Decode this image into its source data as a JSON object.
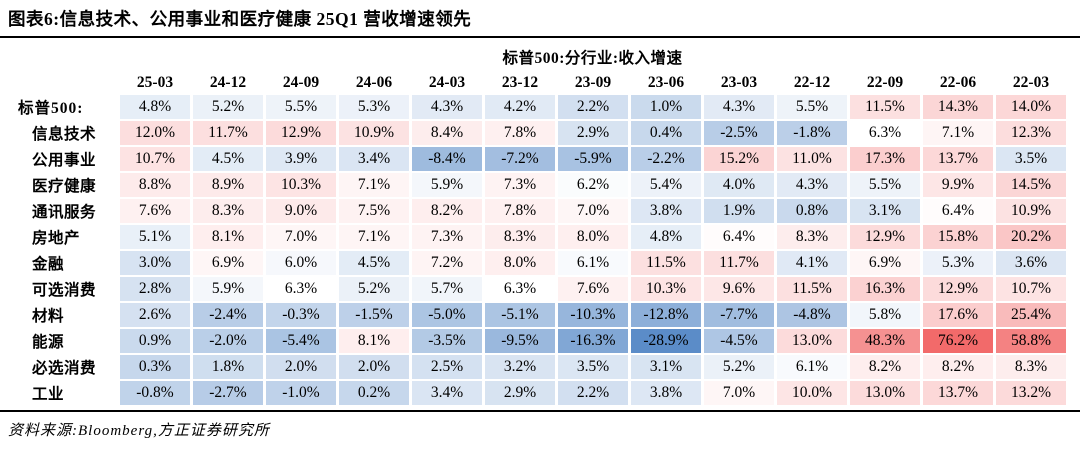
{
  "figure": {
    "title": "图表6:信息技术、公用事业和医疗健康 25Q1 营收增速领先",
    "source": "资料来源:Bloomberg,方正证券研究所"
  },
  "chart_data": {
    "type": "heatmap",
    "title": "标普500:分行业:收入增速",
    "unit": "%",
    "value_format": "one_decimal_percent",
    "categories": [
      "25-03",
      "24-12",
      "24-09",
      "24-06",
      "24-03",
      "23-12",
      "23-09",
      "23-06",
      "23-03",
      "22-12",
      "22-09",
      "22-06",
      "22-03"
    ],
    "rows": [
      {
        "name": "标普500:",
        "indent": false,
        "values": [
          4.8,
          5.2,
          5.5,
          5.3,
          4.3,
          4.2,
          2.2,
          1.0,
          4.3,
          5.5,
          11.5,
          14.3,
          14.0
        ]
      },
      {
        "name": "信息技术",
        "indent": true,
        "values": [
          12.0,
          11.7,
          12.9,
          10.9,
          8.4,
          7.8,
          2.9,
          0.4,
          -2.5,
          -1.8,
          6.3,
          7.1,
          12.3
        ]
      },
      {
        "name": "公用事业",
        "indent": true,
        "values": [
          10.7,
          4.5,
          3.9,
          3.4,
          -8.4,
          -7.2,
          -5.9,
          -2.2,
          15.2,
          11.0,
          17.3,
          13.7,
          3.5
        ]
      },
      {
        "name": "医疗健康",
        "indent": true,
        "values": [
          8.8,
          8.9,
          10.3,
          7.1,
          5.9,
          7.3,
          6.2,
          5.4,
          4.0,
          4.3,
          5.5,
          9.9,
          14.5
        ]
      },
      {
        "name": "通讯服务",
        "indent": true,
        "values": [
          7.6,
          8.3,
          9.0,
          7.5,
          8.2,
          7.8,
          7.0,
          3.8,
          1.9,
          0.8,
          3.1,
          6.4,
          10.9
        ]
      },
      {
        "name": "房地产",
        "indent": true,
        "values": [
          5.1,
          8.1,
          7.0,
          7.1,
          7.3,
          8.3,
          8.0,
          4.8,
          6.4,
          8.3,
          12.9,
          15.8,
          20.2
        ]
      },
      {
        "name": "金融",
        "indent": true,
        "values": [
          3.0,
          6.9,
          6.0,
          4.5,
          7.2,
          8.0,
          6.1,
          11.5,
          11.7,
          4.1,
          6.9,
          5.3,
          3.6
        ]
      },
      {
        "name": "可选消费",
        "indent": true,
        "values": [
          2.8,
          5.9,
          6.3,
          5.2,
          5.7,
          6.3,
          7.6,
          10.3,
          9.6,
          11.5,
          16.3,
          12.9,
          10.7
        ]
      },
      {
        "name": "材料",
        "indent": true,
        "values": [
          2.6,
          -2.4,
          -0.3,
          -1.5,
          -5.0,
          -5.1,
          -10.3,
          -12.8,
          -7.7,
          -4.8,
          5.8,
          17.6,
          25.4
        ]
      },
      {
        "name": "能源",
        "indent": true,
        "values": [
          0.9,
          -2.0,
          -5.4,
          8.1,
          -3.5,
          -9.5,
          -16.3,
          -28.9,
          -4.5,
          13.0,
          48.3,
          76.2,
          58.8
        ]
      },
      {
        "name": "必选消费",
        "indent": true,
        "values": [
          0.3,
          1.8,
          2.0,
          2.0,
          2.5,
          3.2,
          3.5,
          3.1,
          5.2,
          6.1,
          8.2,
          8.2,
          8.3
        ]
      },
      {
        "name": "工业",
        "indent": true,
        "values": [
          -0.8,
          -2.7,
          -1.0,
          0.2,
          3.4,
          2.9,
          2.2,
          3.8,
          7.0,
          10.0,
          13.0,
          13.7,
          13.2
        ]
      }
    ],
    "color_scale": {
      "min": -28.9,
      "mid": 6.3,
      "max": 76.2,
      "min_color": "#5b8cc8",
      "mid_color": "#ffffff",
      "max_color": "#f26a6a",
      "gamma": 0.6
    },
    "legend_position": "none",
    "grid": false
  }
}
